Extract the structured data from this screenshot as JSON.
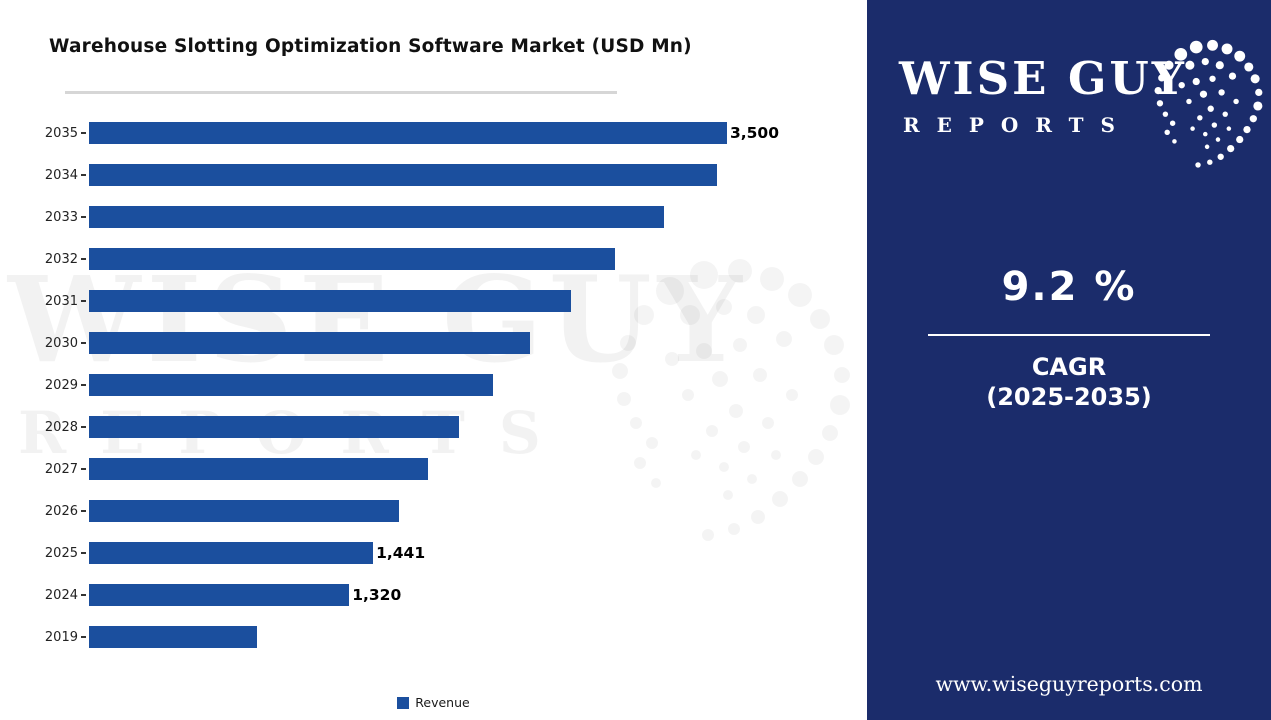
{
  "chart": {
    "title": "Warehouse Slotting Optimization Software Market (USD Mn)",
    "legend_label": "Revenue"
  },
  "chart_data": {
    "type": "bar",
    "orientation": "horizontal",
    "title": "Warehouse Slotting Optimization Software Market (USD Mn)",
    "xlabel": "",
    "ylabel": "",
    "xlim": [
      0,
      3500
    ],
    "grid": false,
    "legend_position": "bottom",
    "series_name": "Revenue",
    "bar_color": "#1b4f9e",
    "categories": [
      "2035",
      "2034",
      "2033",
      "2032",
      "2031",
      "2030",
      "2029",
      "2028",
      "2027",
      "2026",
      "2025",
      "2024",
      "2019"
    ],
    "values": [
      3500,
      3184,
      2915,
      2670,
      2445,
      2239,
      2050,
      1877,
      1719,
      1574,
      1441,
      1320,
      850
    ],
    "data_labels": [
      "3,500",
      "",
      "",
      "",
      "",
      "",
      "",
      "",
      "",
      "",
      "1,441",
      "1,320",
      ""
    ]
  },
  "brand": {
    "logo_line1": "WISE GUY",
    "logo_line2": "REPORTS",
    "cagr_value": "9.2 %",
    "cagr_label_line1": "CAGR",
    "cagr_label_line2": "(2025-2035)",
    "website": "www.wiseguyreports.com",
    "bg_color": "#1b2c6b"
  },
  "watermark": {
    "line1": "WISE GUY",
    "line2": "REPORTS"
  }
}
